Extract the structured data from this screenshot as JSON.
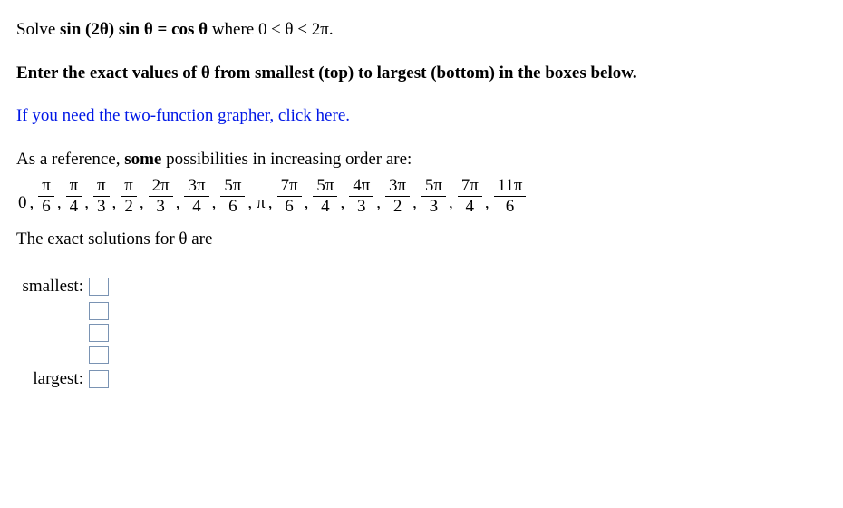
{
  "problem": {
    "line1_pre": "Solve ",
    "line1_eq_bold": "sin (2θ) sin θ =  cos θ",
    "line1_post": " where 0 ≤ θ < 2π.",
    "line2": "Enter the exact values of θ from smallest (top) to largest (bottom) in the boxes below.",
    "link_text": "If you need the two-function grapher, click here.",
    "ref_pre": "As a reference, ",
    "ref_bold": "some",
    "ref_post": " possibilities in increasing order are:",
    "solutions_label": "The exact solutions for θ are",
    "smallest_label": "smallest:",
    "largest_label": "largest:"
  },
  "fractions": [
    {
      "type": "plain",
      "text": "0"
    },
    {
      "type": "frac",
      "num": "π",
      "den": "6"
    },
    {
      "type": "frac",
      "num": "π",
      "den": "4"
    },
    {
      "type": "frac",
      "num": "π",
      "den": "3"
    },
    {
      "type": "frac",
      "num": "π",
      "den": "2"
    },
    {
      "type": "frac",
      "num": "2π",
      "den": "3"
    },
    {
      "type": "frac",
      "num": "3π",
      "den": "4"
    },
    {
      "type": "frac",
      "num": "5π",
      "den": "6"
    },
    {
      "type": "plain",
      "text": "π"
    },
    {
      "type": "frac",
      "num": "7π",
      "den": "6"
    },
    {
      "type": "frac",
      "num": "5π",
      "den": "4"
    },
    {
      "type": "frac",
      "num": "4π",
      "den": "3"
    },
    {
      "type": "frac",
      "num": "3π",
      "den": "2"
    },
    {
      "type": "frac",
      "num": "5π",
      "den": "3"
    },
    {
      "type": "frac",
      "num": "7π",
      "den": "4"
    },
    {
      "type": "frac",
      "num": "11π",
      "den": "6"
    }
  ],
  "answers": {
    "count": 5
  },
  "styling": {
    "link_color": "#0017e6",
    "input_border_color": "#7a93b3",
    "font_family": "Times New Roman",
    "base_fontsize_pt": 15,
    "background": "#ffffff"
  }
}
